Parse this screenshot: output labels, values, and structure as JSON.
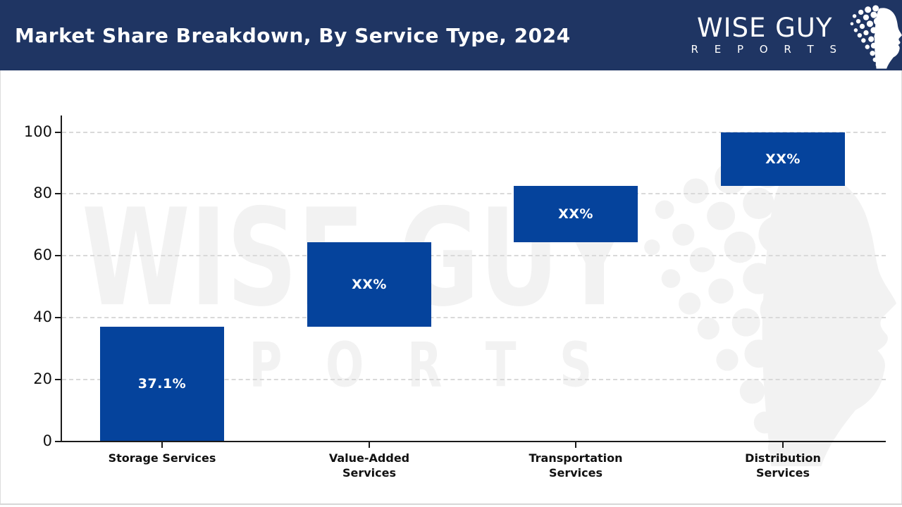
{
  "header": {
    "title": "Market Share Breakdown, By Service Type, 2024",
    "bg_color": "#1f3563",
    "logo": {
      "line1": "WISE GUY",
      "line2": "R E P O R T S",
      "head_icon": "dotted-head-profile"
    }
  },
  "watermark": {
    "line1": "WISE GUY",
    "line2": "R E P O R T S",
    "head_icon": "dotted-head-profile",
    "color": "#f2f2f2"
  },
  "chart_data": {
    "type": "bar",
    "subtype": "waterfall",
    "title": "Market Share Breakdown, By Service Type, 2024",
    "categories": [
      "Storage Services",
      "Value-Added\nServices",
      "Transportation\nServices",
      "Distribution\nServices"
    ],
    "segments": [
      {
        "category": "Storage Services",
        "start": 0,
        "end": 37.1,
        "size": 37.1,
        "label": "37.1%"
      },
      {
        "category": "Value-Added Services",
        "start": 37.1,
        "end": 64.3,
        "size": 27.2,
        "label": "XX%"
      },
      {
        "category": "Transportation Services",
        "start": 64.3,
        "end": 82.7,
        "size": 18.4,
        "label": "XX%"
      },
      {
        "category": "Distribution Services",
        "start": 82.7,
        "end": 100,
        "size": 17.3,
        "label": "XX%"
      }
    ],
    "yticks": [
      0,
      20,
      40,
      60,
      80,
      100
    ],
    "ylim": [
      0,
      105
    ],
    "xlabel": "",
    "ylabel": "",
    "grid": "horizontal-dashed",
    "legend": "none",
    "bar_color": "#05439c",
    "value_label_color": "#ffffff",
    "axis_color": "#1a1a1a",
    "gridline_color": "#d9d9d9",
    "note": "Percentages for all segments except Storage Services are masked as XX% in the source image"
  }
}
